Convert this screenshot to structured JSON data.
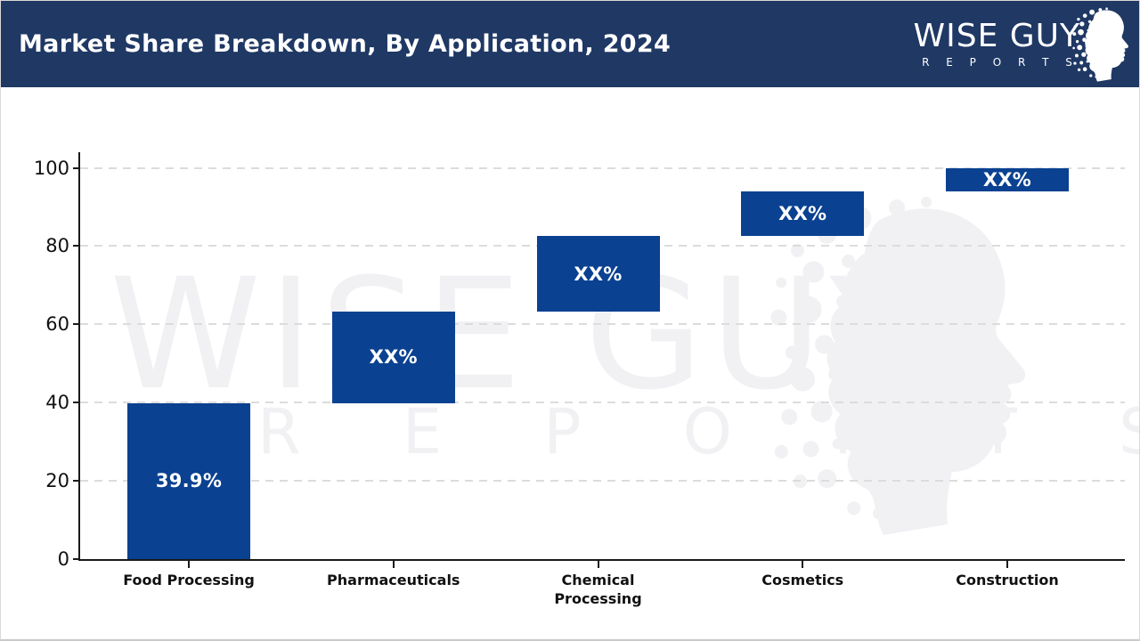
{
  "header": {
    "title": "Market Share Breakdown, By Application, 2024",
    "logo": {
      "line1": "WISE GUY",
      "line2": "R E P O R T S",
      "icon": "dotted-face-profile"
    }
  },
  "watermark": {
    "line1": "WISE GUY",
    "line2": "R E P O R T S",
    "icon": "dotted-face-profile"
  },
  "chart_data": {
    "type": "bar",
    "variant": "waterfall",
    "title": "Market Share Breakdown, By Application, 2024",
    "categories": [
      "Food Processing",
      "Pharmaceuticals",
      "Chemical Processing",
      "Cosmetics",
      "Construction"
    ],
    "category_label_lines": [
      [
        "Food Processing"
      ],
      [
        "Pharmaceuticals"
      ],
      [
        "Chemical",
        "Processing"
      ],
      [
        "Cosmetics"
      ],
      [
        "Construction"
      ]
    ],
    "segments": [
      {
        "category": "Food Processing",
        "label": "39.9%",
        "start": 0,
        "end": 39.9
      },
      {
        "category": "Pharmaceuticals",
        "label": "XX%",
        "start": 39.9,
        "end": 63.2
      },
      {
        "category": "Chemical Processing",
        "label": "XX%",
        "start": 63.2,
        "end": 82.5
      },
      {
        "category": "Cosmetics",
        "label": "XX%",
        "start": 82.5,
        "end": 94
      },
      {
        "category": "Construction",
        "label": "XX%",
        "start": 94,
        "end": 100
      }
    ],
    "ylabel": "",
    "xlabel": "",
    "yticks": [
      0,
      20,
      40,
      60,
      80,
      100
    ],
    "ylim": [
      0,
      104
    ],
    "grid": "horizontal-dashed",
    "legend": "none",
    "bar_color": "#0a4191",
    "bar_label_color": "#ffffff",
    "axis_color": "#1a1a1a",
    "header_color": "#1f3864"
  }
}
